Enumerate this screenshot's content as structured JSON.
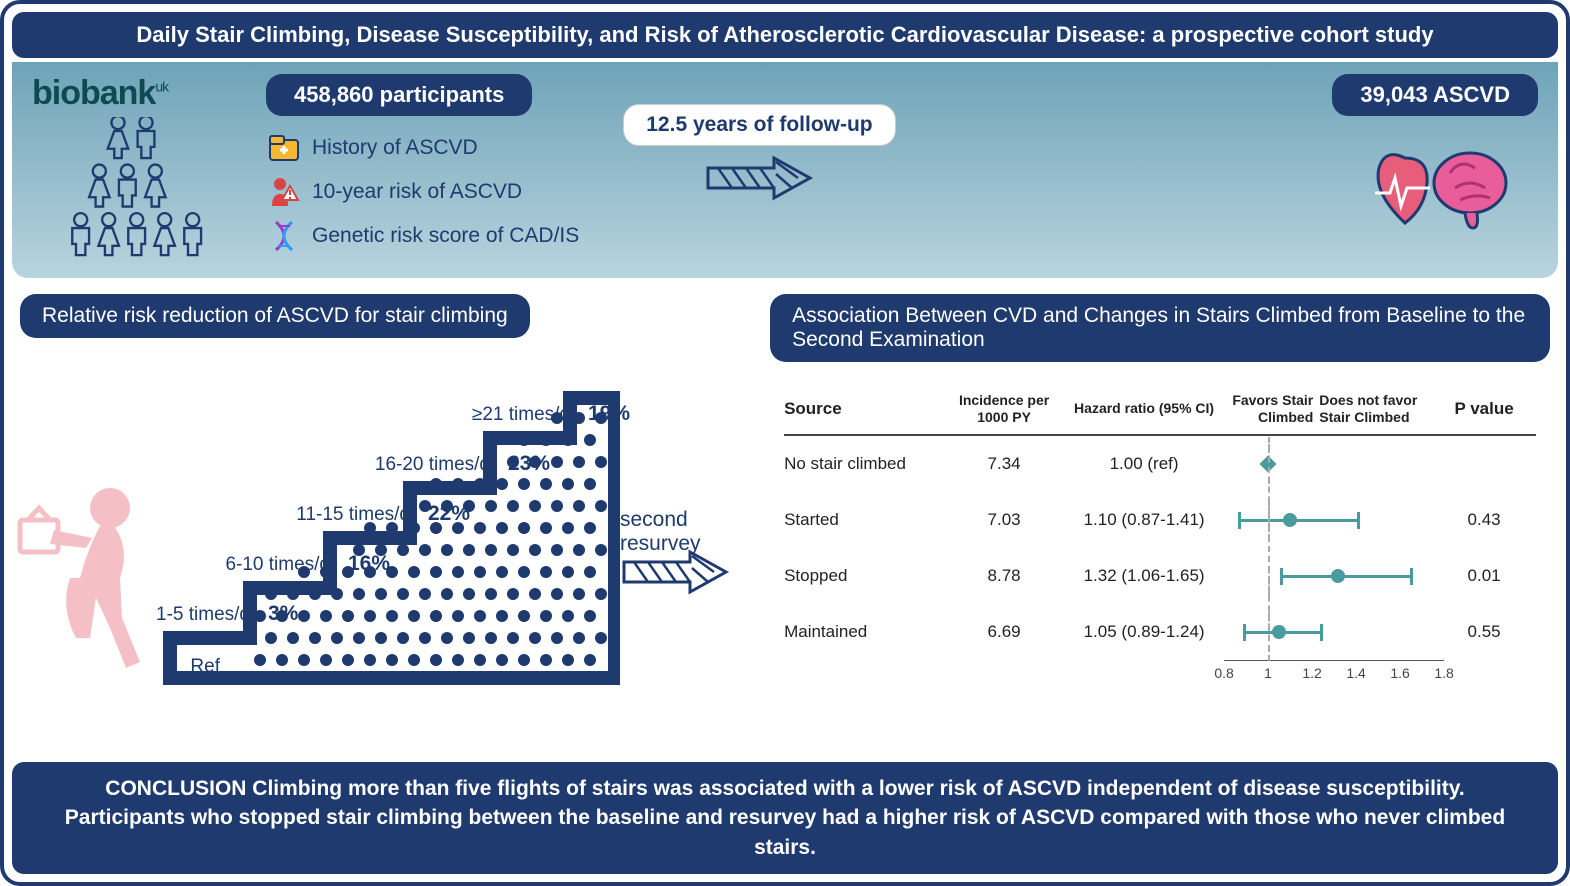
{
  "title": "Daily Stair Climbing, Disease Susceptibility, and Risk of Atherosclerotic Cardiovascular Disease: a prospective cohort study",
  "colors": {
    "navy": "#1e3a6e",
    "teal": "#4a9b9e",
    "pink": "#f5c0c5",
    "bgTop1": "#6ea3b8",
    "bgTop2": "#b8d4de",
    "yellow": "#f7b731",
    "red": "#d84343",
    "purple": "#9b3bcc"
  },
  "top": {
    "biobank": "biobank",
    "biobank_sup": "uk",
    "participants_pill": "458,860 participants",
    "info_items": [
      {
        "label": "History of ASCVD",
        "icon": "folder"
      },
      {
        "label": "10-year risk of ASCVD",
        "icon": "person-alert"
      },
      {
        "label": "Genetic risk score of CAD/IS",
        "icon": "dna"
      }
    ],
    "followup": "12.5 years of follow-up",
    "ascvd_pill": "39,043 ASCVD"
  },
  "left": {
    "header": "Relative risk reduction of ASCVD for stair climbing",
    "stairs": [
      {
        "label": "Ref",
        "pct": ""
      },
      {
        "label": "1-5 times/d",
        "pct": "3%"
      },
      {
        "label": "6-10 times/d",
        "pct": "16%"
      },
      {
        "label": "11-15 times/d",
        "pct": "22%"
      },
      {
        "label": "16-20 times/d",
        "pct": "23%"
      },
      {
        "label": "≥21 times/d",
        "pct": "19%"
      }
    ],
    "resurvey": "second resurvey"
  },
  "right": {
    "header": "Association Between CVD and Changes in Stairs Climbed from Baseline to the Second Examination",
    "columns": {
      "source": "Source",
      "incidence": "Incidence per 1000 PY",
      "hr": "Hazard ratio (95% CI)",
      "favors": "Favors Stair Climbed",
      "not_favor": "Does not favor Stair Climbed",
      "p": "P value"
    },
    "rows": [
      {
        "source": "No stair climbed",
        "incidence": "7.34",
        "hr": "1.00 (ref)",
        "est": 1.0,
        "low": 1.0,
        "high": 1.0,
        "p": ""
      },
      {
        "source": "Started",
        "incidence": "7.03",
        "hr": "1.10 (0.87-1.41)",
        "est": 1.1,
        "low": 0.87,
        "high": 1.41,
        "p": "0.43"
      },
      {
        "source": "Stopped",
        "incidence": "8.78",
        "hr": "1.32 (1.06-1.65)",
        "est": 1.32,
        "low": 1.06,
        "high": 1.65,
        "p": "0.01"
      },
      {
        "source": "Maintained",
        "incidence": "6.69",
        "hr": "1.05 (0.89-1.24)",
        "est": 1.05,
        "low": 0.89,
        "high": 1.24,
        "p": "0.55"
      }
    ],
    "xaxis": {
      "min": 0.8,
      "max": 1.8,
      "ticks": [
        0.8,
        1,
        1.2,
        1.4,
        1.6,
        1.8
      ],
      "ref": 1.0
    },
    "plot_color": "#4a9b9e"
  },
  "conclusion": "CONCLUSION Climbing more than five flights of stairs was associated with a lower risk of ASCVD  independent of disease susceptibility. Participants who stopped stair climbing between the baseline and resurvey had a higher risk of ASCVD compared with those who never climbed stairs."
}
